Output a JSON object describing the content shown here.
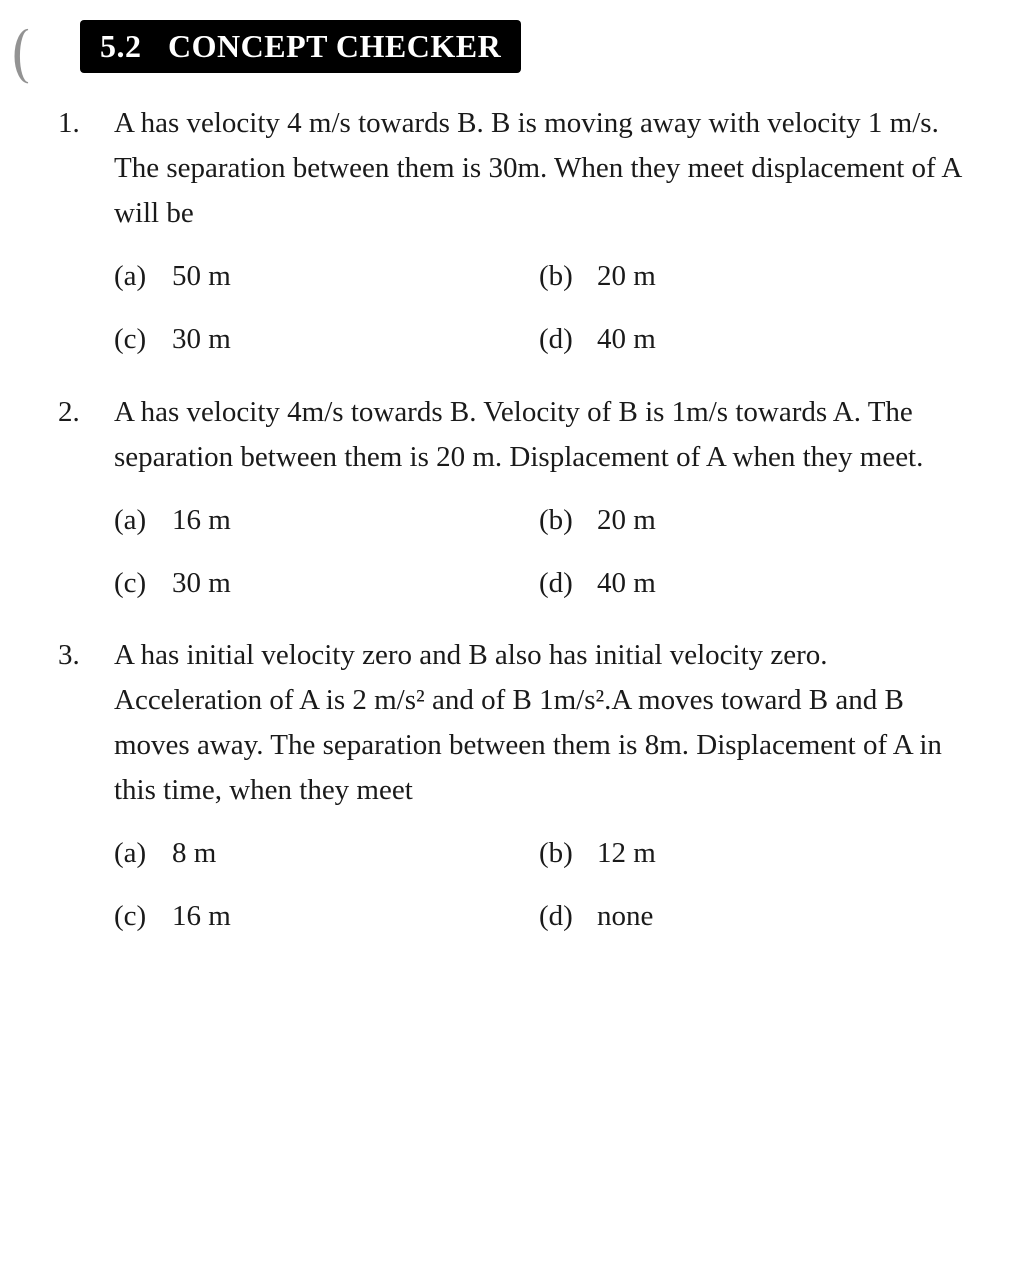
{
  "header": {
    "section_number": "5.2",
    "title": "CONCEPT CHECKER"
  },
  "questions": [
    {
      "number": "1.",
      "text": "A has velocity 4 m/s towards B. B is moving away with velocity 1 m/s. The separation between them is 30m. When they meet displacement of A will be",
      "options": [
        {
          "label": "(a)",
          "text": "50 m"
        },
        {
          "label": "(b)",
          "text": "20 m"
        },
        {
          "label": "(c)",
          "text": "30 m"
        },
        {
          "label": "(d)",
          "text": "40 m"
        }
      ]
    },
    {
      "number": "2.",
      "text": "A has velocity 4m/s towards B. Velocity of B is 1m/s towards A. The separation between them is 20 m. Displacement of A when they meet.",
      "options": [
        {
          "label": "(a)",
          "text": "16 m"
        },
        {
          "label": "(b)",
          "text": "20 m"
        },
        {
          "label": "(c)",
          "text": "30 m"
        },
        {
          "label": "(d)",
          "text": "40 m"
        }
      ]
    },
    {
      "number": "3.",
      "text_html": "A has initial velocity zero and B also has initial velocity zero. Acceleration of A is 2 m/s² and of B 1m/s².A moves toward B and B moves away. The separation between them is 8m. Displacement of A in this time, when they meet",
      "options": [
        {
          "label": "(a)",
          "text": "8 m"
        },
        {
          "label": "(b)",
          "text": "12 m"
        },
        {
          "label": "(c)",
          "text": "16 m"
        },
        {
          "label": "(d)",
          "text": "none"
        }
      ]
    }
  ]
}
